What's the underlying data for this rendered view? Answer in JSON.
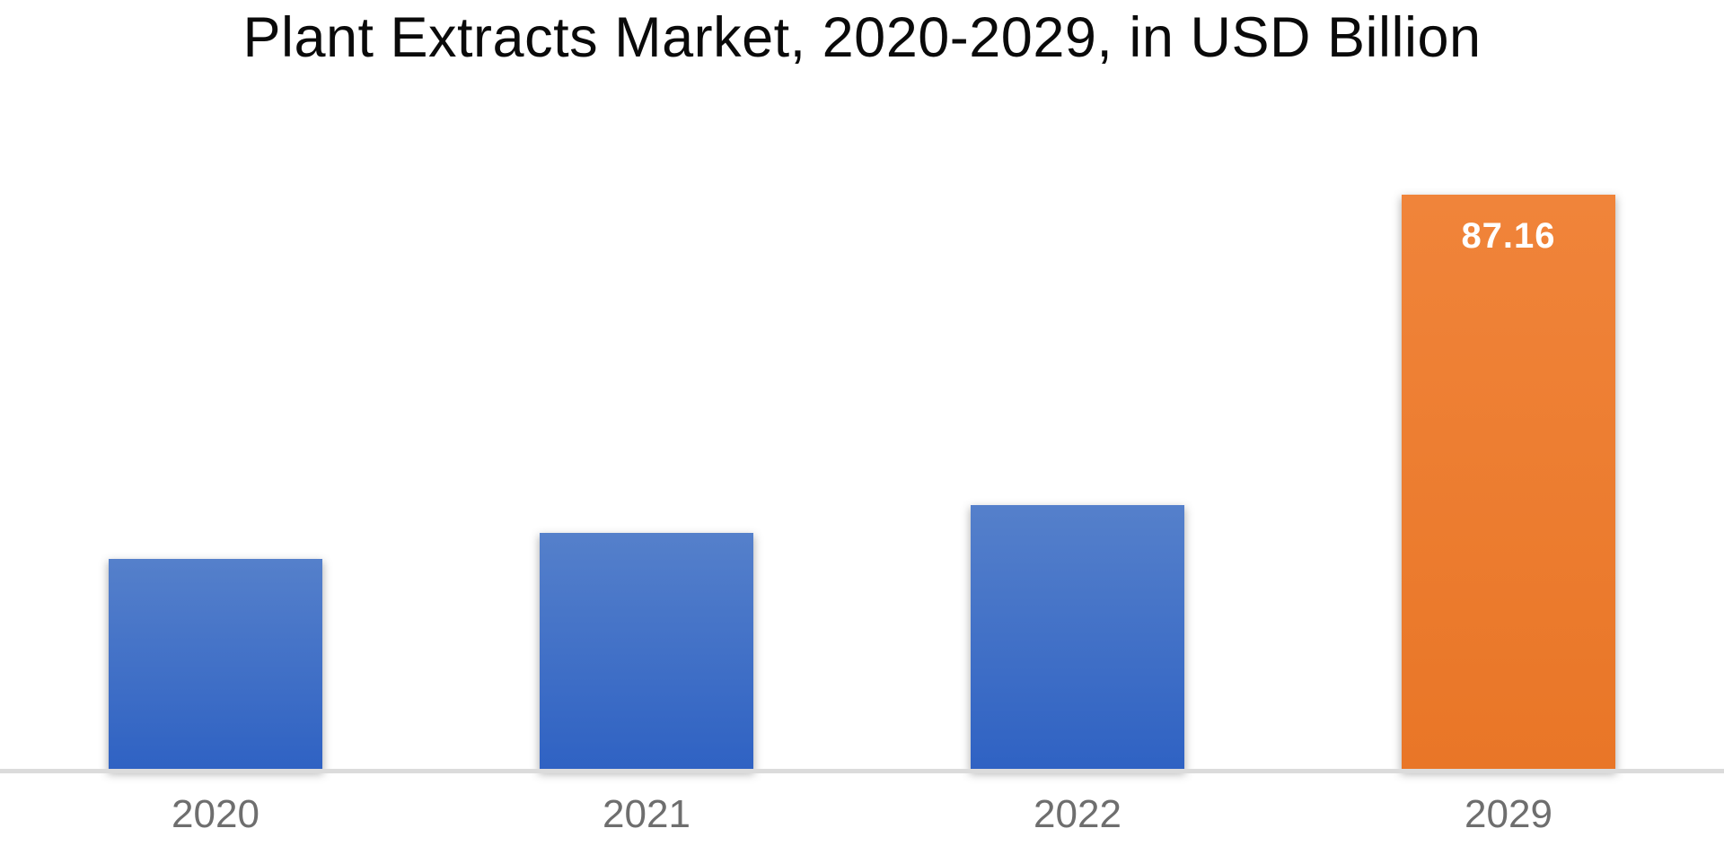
{
  "title": "Plant Extracts Market, 2020-2029, in USD Billion",
  "colors": {
    "bar_blue_top": "#5580CB",
    "bar_blue_bottom": "#2F62C3",
    "bar_orange_top": "#F0843A",
    "bar_orange_bottom": "#E97627",
    "axis_line": "#DBDBDB",
    "category_label": "#6E6E6E",
    "value_label": "#FFFFFF",
    "title_text": "#0A0A0A",
    "background": "#FFFFFF"
  },
  "chart_data": {
    "type": "bar",
    "title": "Plant Extracts Market, 2020-2029, in USD Billion",
    "categories": [
      "2020",
      "2021",
      "2022",
      "2029"
    ],
    "values": [
      32.0,
      35.9,
      40.1,
      87.16
    ],
    "labeled_value": "87.16",
    "bar_colors": [
      "blue",
      "blue",
      "blue",
      "orange"
    ],
    "xlabel": "",
    "ylabel": "",
    "unit": "USD Billion",
    "ylim": [
      0,
      95
    ],
    "grid": false,
    "legend": false,
    "y_axis_shown": false
  }
}
